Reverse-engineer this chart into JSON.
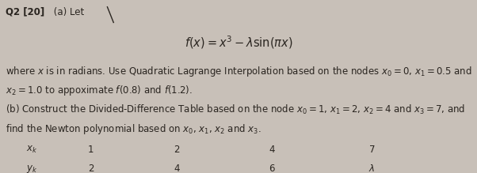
{
  "background_color": "#c8c0b8",
  "title_bold": "Q2 [20]",
  "title_normal": " (a) Let",
  "formula": "$f(x) = x^3 - \\lambda\\sin(\\pi x)$",
  "para1_parts": [
    {
      "text": "where ",
      "style": "normal"
    },
    {
      "text": "x",
      "style": "italic"
    },
    {
      "text": " is in radians. Use ",
      "style": "normal"
    },
    {
      "text": "Quadratic Lagrange Interpolation",
      "style": "italic"
    },
    {
      "text": " based on the nodes ",
      "style": "normal"
    },
    {
      "text": "x",
      "style": "italic"
    },
    {
      "text": "₀ = 0, ",
      "style": "normal"
    },
    {
      "text": "x",
      "style": "italic"
    },
    {
      "text": "₁ = 0.5 and",
      "style": "normal"
    }
  ],
  "para1_line2_parts": [
    {
      "text": "x",
      "style": "italic"
    },
    {
      "text": "₂ = 1.0 to appoximate ",
      "style": "normal"
    },
    {
      "text": "f",
      "style": "italic"
    },
    {
      "text": "(0.8) and ",
      "style": "normal"
    },
    {
      "text": "f",
      "style": "italic"
    },
    {
      "text": "(1.2).",
      "style": "normal"
    }
  ],
  "para2_parts": [
    {
      "text": "(b) Construct the ",
      "style": "normal"
    },
    {
      "text": "Divided-Difference Table",
      "style": "italic"
    },
    {
      "text": " based on the node ",
      "style": "normal"
    },
    {
      "text": "x",
      "style": "italic"
    },
    {
      "text": "₀ = 1, ",
      "style": "normal"
    },
    {
      "text": "x",
      "style": "italic"
    },
    {
      "text": "₁ = 2, ",
      "style": "normal"
    },
    {
      "text": "x",
      "style": "italic"
    },
    {
      "text": "₂ = 4 and ",
      "style": "normal"
    },
    {
      "text": "x",
      "style": "italic"
    },
    {
      "text": "₃ = 7, and",
      "style": "normal"
    }
  ],
  "para2_line2_parts": [
    {
      "text": "find the Newton polynomial based on ",
      "style": "normal"
    },
    {
      "text": "x",
      "style": "italic"
    },
    {
      "text": "₀, ",
      "style": "normal"
    },
    {
      "text": "x",
      "style": "italic"
    },
    {
      "text": "₁, ",
      "style": "normal"
    },
    {
      "text": "x",
      "style": "italic"
    },
    {
      "text": "₂ and ",
      "style": "normal"
    },
    {
      "text": "x",
      "style": "italic"
    },
    {
      "text": "₃.",
      "style": "normal"
    }
  ],
  "xk_label": "$x_k$",
  "yk_label": "$y_k$",
  "xk_values": [
    "1",
    "2",
    "4",
    "7"
  ],
  "yk_values": [
    "2",
    "4",
    "6",
    "$\\lambda$"
  ],
  "text_color": "#2a2520",
  "font_size": 8.5,
  "font_size_formula": 10.5
}
